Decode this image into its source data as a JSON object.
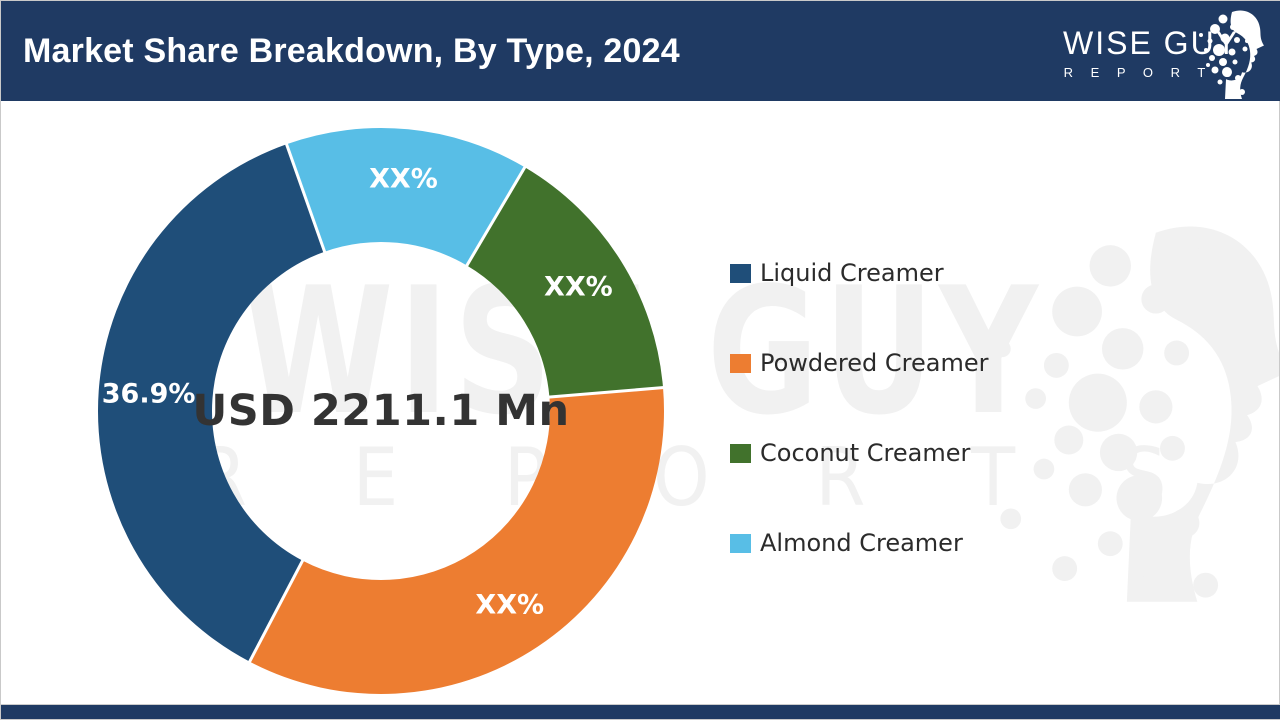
{
  "header": {
    "title": "Market Share Breakdown, By Type, 2024",
    "logo_main": "WISE GUY",
    "logo_sub": "R E P O R T S",
    "bg_color": "#1f3a63"
  },
  "watermark": {
    "line1": "WISE GUY",
    "line2": "R E P O R T S"
  },
  "chart_data": {
    "type": "pie",
    "subtype": "donut",
    "title": "Market Share Breakdown, By Type, 2024",
    "center_label": "USD 2211.1 Mn",
    "start_angle_deg": 109.5,
    "direction": "counterclockwise",
    "legend_position": "right",
    "inner_radius_ratio": 0.6,
    "segments": [
      {
        "label": "Liquid Creamer",
        "value_pct": 36.9,
        "display_label": "36.9%",
        "color": "#1f4e79"
      },
      {
        "label": "Powdered Creamer",
        "value_pct": 34.0,
        "display_label": "XX%",
        "color": "#ed7d31"
      },
      {
        "label": "Coconut Creamer",
        "value_pct": 15.2,
        "display_label": "XX%",
        "color": "#41722c"
      },
      {
        "label": "Almond Creamer",
        "value_pct": 13.9,
        "display_label": "XX%",
        "color": "#58bee6"
      }
    ]
  },
  "colors": {
    "header_bg": "#1f3a63",
    "footer_bg": "#1f3a63",
    "watermark": "#f1f1f1",
    "center_text": "#333333",
    "legend_text": "#2b2b2b",
    "page_border": "#c9c9c9"
  }
}
